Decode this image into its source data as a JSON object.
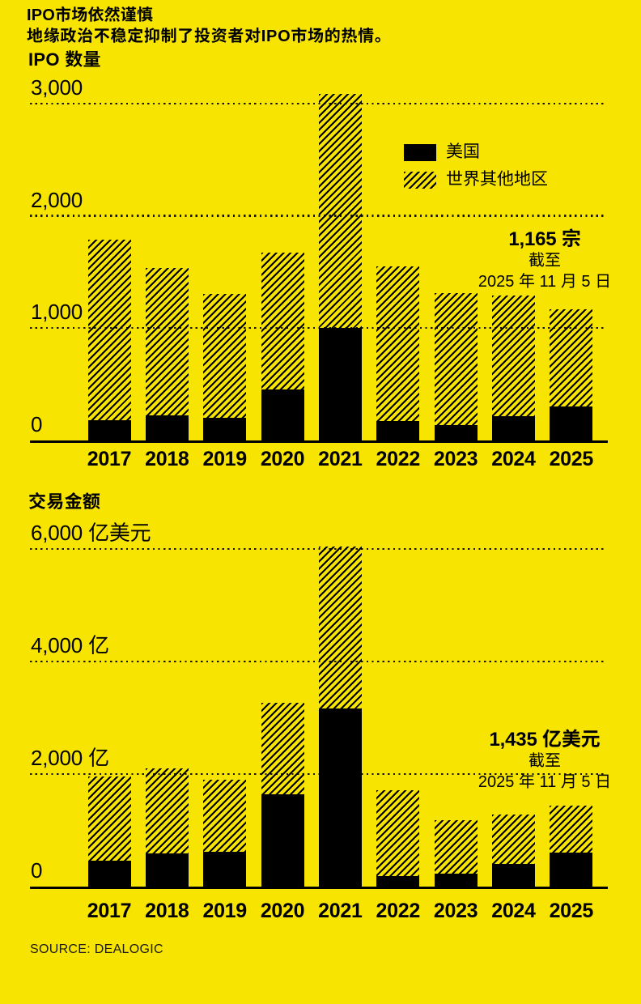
{
  "page": {
    "title": "IPO市场依然谨慎",
    "subtitle": "地缘政治不稳定抑制了投资者对IPO市场的热情。",
    "source": "SOURCE: DEALOGIC",
    "background_color": "#F7E400",
    "ink_color": "#000000"
  },
  "chart_data": [
    {
      "type": "bar",
      "stacked": true,
      "title": "IPO 数量",
      "categories": [
        "2017",
        "2018",
        "2019",
        "2020",
        "2021",
        "2022",
        "2023",
        "2024",
        "2025"
      ],
      "series": [
        {
          "name": "美国",
          "style": "solid",
          "values": [
            180,
            220,
            205,
            455,
            1005,
            170,
            135,
            215,
            300
          ]
        },
        {
          "name": "世界其他地区",
          "style": "hatch",
          "values": [
            1610,
            1315,
            1100,
            1215,
            2080,
            1380,
            1175,
            1075,
            865
          ]
        }
      ],
      "totals": [
        1790,
        1535,
        1305,
        1670,
        3085,
        1550,
        1310,
        1290,
        1165
      ],
      "ylim": [
        0,
        3100
      ],
      "grid": "dotted",
      "yticks": [
        {
          "value": 0,
          "label": "0"
        },
        {
          "value": 1000,
          "label": "1,000"
        },
        {
          "value": 2000,
          "label": "2,000"
        },
        {
          "value": 3000,
          "label": "3,000"
        }
      ],
      "legend": [
        {
          "label": "美国",
          "swatch": "solid"
        },
        {
          "label": "世界其他地区",
          "swatch": "hatch"
        }
      ],
      "annotation": {
        "line1": "1,165 宗",
        "line2": "截至",
        "line3": "2025 年 11 月 5 日"
      }
    },
    {
      "type": "bar",
      "stacked": true,
      "title": "交易金额",
      "categories": [
        "2017",
        "2018",
        "2019",
        "2020",
        "2021",
        "2022",
        "2023",
        "2024",
        "2025"
      ],
      "series": [
        {
          "name": "美国",
          "style": "solid",
          "values": [
            460,
            595,
            620,
            1645,
            3160,
            185,
            230,
            400,
            600
          ]
        },
        {
          "name": "世界其他地区",
          "style": "hatch",
          "values": [
            1500,
            1510,
            1280,
            1620,
            2880,
            1530,
            945,
            885,
            835
          ]
        }
      ],
      "totals": [
        1960,
        2105,
        1900,
        3265,
        6040,
        1715,
        1175,
        1285,
        1435
      ],
      "ylim": [
        0,
        6100
      ],
      "grid": "dotted",
      "yticks": [
        {
          "value": 0,
          "label": "0"
        },
        {
          "value": 2000,
          "label": "2,000 亿"
        },
        {
          "value": 4000,
          "label": "4,000 亿"
        },
        {
          "value": 6000,
          "label": "6,000 亿美元"
        }
      ],
      "legend": [],
      "annotation": {
        "line1": "1,435 亿美元",
        "line2": "截至",
        "line3": "2025 年 11 月 5 日"
      }
    }
  ]
}
